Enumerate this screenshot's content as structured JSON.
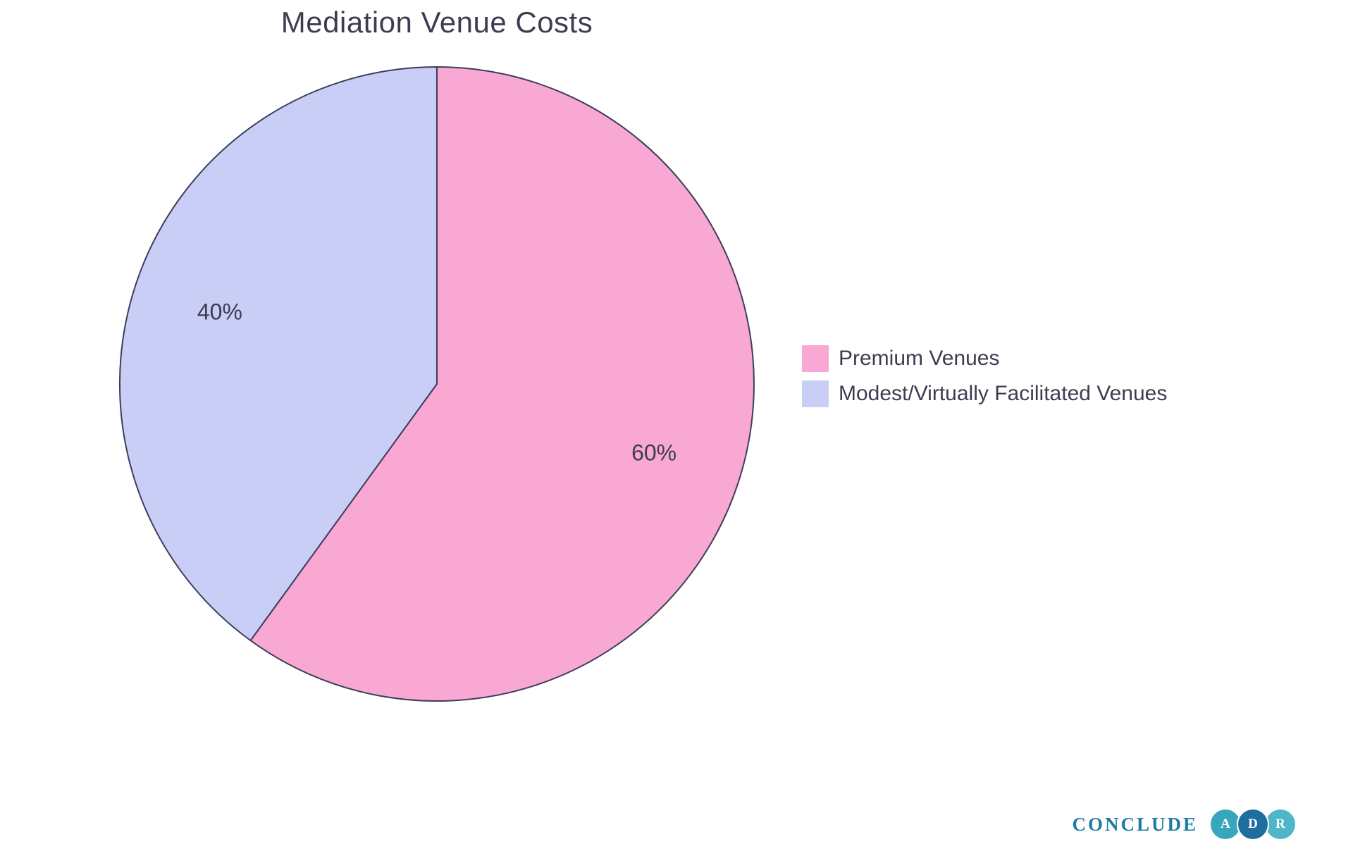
{
  "title": "Mediation Venue Costs",
  "chart_data": {
    "type": "pie",
    "title": "Mediation Venue Costs",
    "start_angle_deg": 0,
    "direction": "clockwise",
    "legend_position": "right",
    "stroke_color": "#3E3E5B",
    "text_color": "#3D3D52",
    "slices": [
      {
        "label": "Premium Venues",
        "value": 60,
        "pct_label": "60%",
        "color": "#F9A8D4"
      },
      {
        "label": "Modest/Virtually Facilitated Venues",
        "value": 40,
        "pct_label": "40%",
        "color": "#C9CEF7"
      }
    ]
  },
  "logo": {
    "brand": "CONCLUDE",
    "brand_color": "#1B7CA6",
    "badges": [
      "A",
      "D",
      "R"
    ],
    "badge_colors": [
      "#38A6BC",
      "#1E6E9E",
      "#4DB6C9"
    ]
  }
}
